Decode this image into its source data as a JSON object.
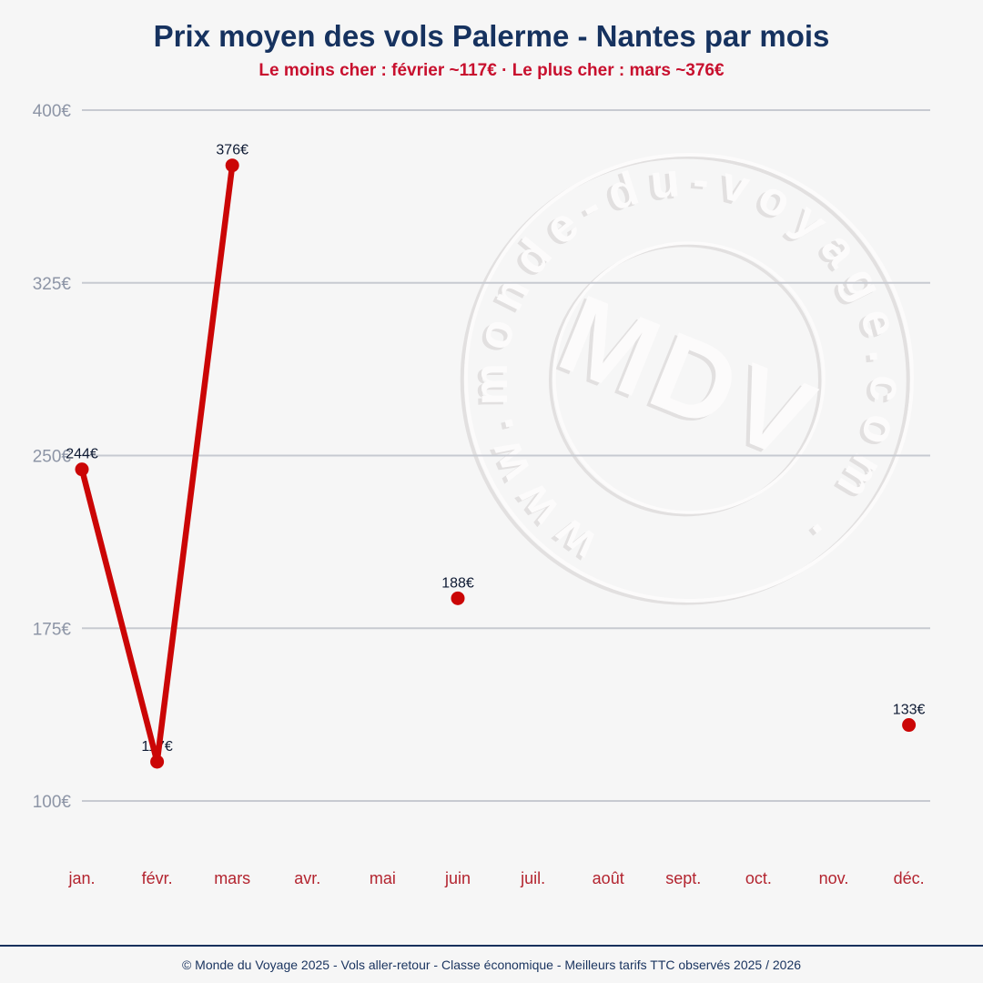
{
  "header": {
    "title": "Prix moyen des vols Palerme - Nantes par mois",
    "subtitle": "Le moins cher : février ~117€ · Le plus cher : mars ~376€"
  },
  "chart_data": {
    "type": "line",
    "title": "Prix moyen des vols Palerme - Nantes par mois",
    "subtitle": "Le moins cher : février ~117€ · Le plus cher : mars ~376€",
    "categories": [
      "jan.",
      "févr.",
      "mars",
      "avr.",
      "mai",
      "juin",
      "juil.",
      "août",
      "sept.",
      "oct.",
      "nov.",
      "déc."
    ],
    "values": [
      244,
      117,
      376,
      null,
      null,
      188,
      null,
      null,
      null,
      null,
      null,
      133
    ],
    "point_labels": [
      "244€",
      "117€",
      "376€",
      "",
      "",
      "188€",
      "",
      "",
      "",
      "",
      "",
      "133€"
    ],
    "yticks": [
      {
        "value": 100,
        "label": "100€"
      },
      {
        "value": 175,
        "label": "175€"
      },
      {
        "value": 250,
        "label": "250€"
      },
      {
        "value": 325,
        "label": "325€"
      },
      {
        "value": 400,
        "label": "400€"
      }
    ],
    "ylim": [
      100,
      400
    ],
    "grid": true,
    "legend": null,
    "colors": {
      "line": "#cb0606",
      "point": "#cb0606",
      "grid": "#c7cad1",
      "ytick_text": "#8d95a6",
      "xtick_text": "#b3242f",
      "point_label_text": "#0e1a33"
    }
  },
  "watermark": {
    "ring_text": "www.monde-du-voyage.com · ",
    "center_text": "MDV"
  },
  "footer": {
    "text": "© Monde du Voyage 2025 - Vols aller-retour - Classe économique - Meilleurs tarifs TTC observés 2025 / 2026"
  },
  "theme": {
    "background": "#f6f6f6",
    "title_color": "#16325f",
    "subtitle_color": "#c8102e",
    "footer_color": "#1b3560",
    "watermark_shadow": "#e2e0e0",
    "watermark_light": "#fcfbfb"
  }
}
